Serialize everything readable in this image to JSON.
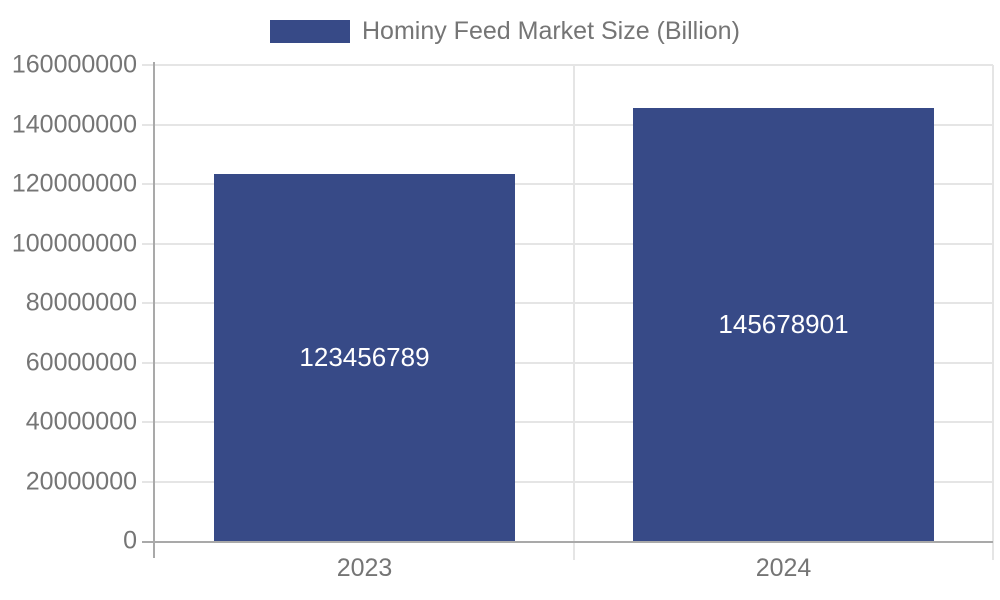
{
  "chart_data": {
    "type": "bar",
    "title": "Hominy Feed Market Size (Billion)",
    "categories": [
      "2023",
      "2024"
    ],
    "series": [
      {
        "name": "Hominy Feed Market Size (Billion)",
        "values": [
          123456789,
          145678901
        ]
      }
    ],
    "data_labels": [
      "123456789",
      "145678901"
    ],
    "xlabel": "",
    "ylabel": "",
    "ylim": [
      0,
      160000000
    ],
    "ytick_step": 20000000,
    "ytick_labels": [
      "0",
      "20000000",
      "40000000",
      "60000000",
      "80000000",
      "100000000",
      "120000000",
      "140000000",
      "160000000"
    ],
    "grid": true,
    "legend_position": "top",
    "colors": {
      "bar": "#374a87",
      "grid": "#e5e5e5",
      "axis": "#a9a9a9",
      "tick_text": "#757575",
      "legend_text": "#757575",
      "bar_label_text": "#ffffff",
      "background": "#ffffff"
    }
  }
}
